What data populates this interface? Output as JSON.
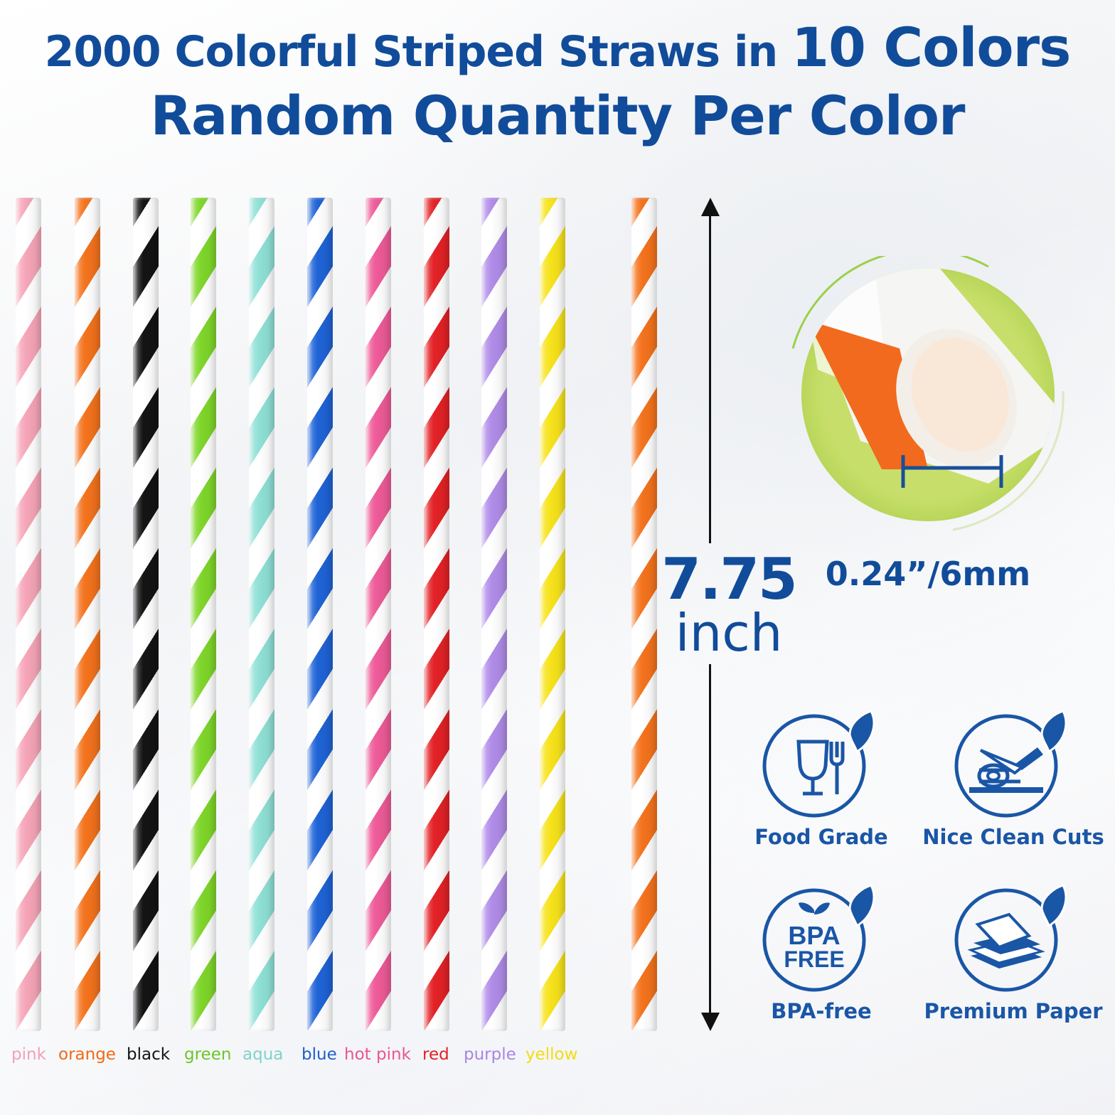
{
  "headline": {
    "line1_prefix": "2000 Colorful Striped Straws in ",
    "line1_emphasis": "10 Colors",
    "line2": "Random Quantity Per Color"
  },
  "straws": [
    {
      "name": "pink",
      "color": "#f6a5b8",
      "label_color": "#f3a0b6"
    },
    {
      "name": "orange",
      "color": "#f4731d",
      "label_color": "#f06a14"
    },
    {
      "name": "black",
      "color": "#141414",
      "label_color": "#141414"
    },
    {
      "name": "green",
      "color": "#7fd62a",
      "label_color": "#6cc62a"
    },
    {
      "name": "aqua",
      "color": "#8fe0d6",
      "label_color": "#7fd3cb"
    },
    {
      "name": "blue",
      "color": "#1f63d6",
      "label_color": "#1c5fcc"
    },
    {
      "name": "hot pink",
      "color": "#ee5b98",
      "label_color": "#ea5592"
    },
    {
      "name": "red",
      "color": "#e32226",
      "label_color": "#e02226"
    },
    {
      "name": "purple",
      "color": "#b08ce8",
      "label_color": "#a985e4"
    },
    {
      "name": "yellow",
      "color": "#f7e31b",
      "label_color": "#f1dc14"
    }
  ],
  "extra_straw": {
    "color": "#f4731d"
  },
  "length": {
    "value": "7.75",
    "unit": "inch"
  },
  "diameter": {
    "label": "0.24”/6mm"
  },
  "features": [
    {
      "icon": "food-grade-icon",
      "label": "Food Grade"
    },
    {
      "icon": "clean-cut-icon",
      "label": "Nice Clean Cuts"
    },
    {
      "icon": "bpa-free-icon",
      "label": "BPA-free",
      "badge_line1": "BPA",
      "badge_line2": "FREE"
    },
    {
      "icon": "premium-paper-icon",
      "label": "Premium Paper"
    }
  ],
  "colors": {
    "brand_blue": "#114c9a",
    "icon_blue": "#1a56a6",
    "closeup_bg": "#c7df6a",
    "closeup_ring": "#9bd04a"
  }
}
